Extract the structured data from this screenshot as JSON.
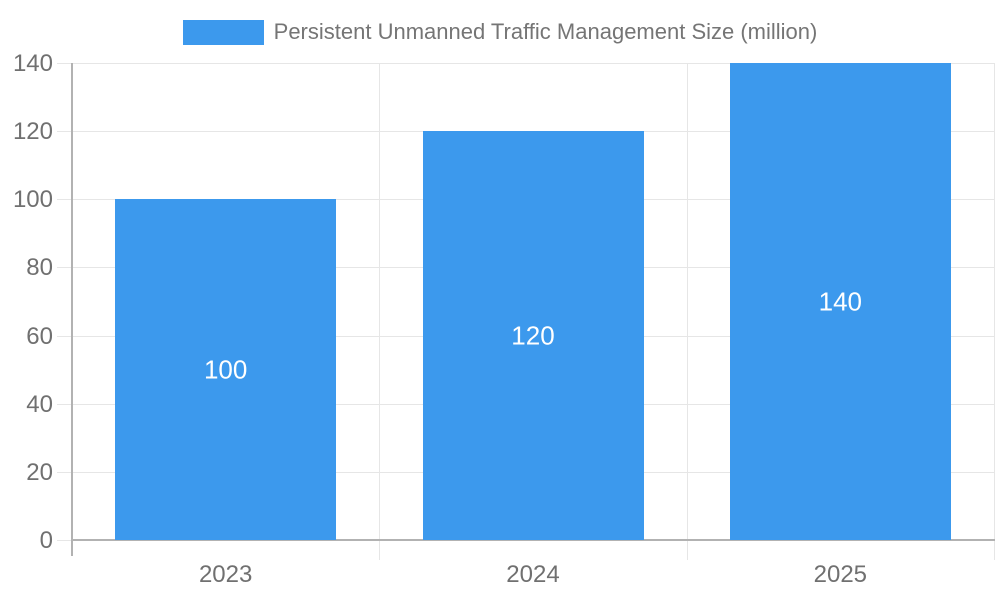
{
  "chart_data": {
    "type": "bar",
    "title": "Persistent Unmanned Traffic Management Size (million)",
    "categories": [
      "2023",
      "2024",
      "2025"
    ],
    "values": [
      100,
      120,
      140
    ],
    "bar_labels": [
      "100",
      "120",
      "140"
    ],
    "xlabel": "",
    "ylabel": "",
    "ylim": [
      0,
      140
    ],
    "yticks": [
      0,
      20,
      40,
      60,
      80,
      100,
      120,
      140
    ],
    "grid": true,
    "legend_position": "top-center",
    "colors": {
      "bar": "#3c99ed",
      "gridline": "#e6e6e6",
      "axis_line": "#b2b2b2",
      "tick_label": "#707070",
      "title_text": "#757575",
      "bar_label_text": "#ffffff",
      "background": "#ffffff"
    }
  }
}
